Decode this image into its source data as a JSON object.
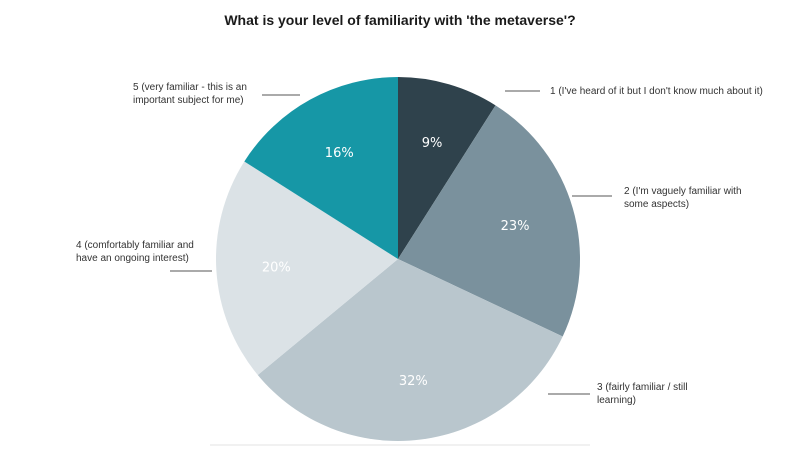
{
  "chart_data": {
    "type": "pie",
    "title": "What is your level of familiarity with 'the metaverse'?",
    "slices": [
      {
        "label": "1 (I've heard of it but I don't know much about it)",
        "value": 9,
        "display": "9%",
        "color": "#2f424c",
        "label_color": "#ffffff"
      },
      {
        "label": "2 (I'm vaguely familiar with some aspects)",
        "value": 23,
        "display": "23%",
        "color": "#7a919d",
        "label_color": "#ffffff"
      },
      {
        "label": "3 (fairly familiar / still learning)",
        "value": 32,
        "display": "32%",
        "color": "#b9c6cd",
        "label_color": "#ffffff"
      },
      {
        "label": "4 (comfortably familiar and have an ongoing interest)",
        "value": 20,
        "display": "20%",
        "color": "#dbe2e6",
        "label_color": "#ffffff"
      },
      {
        "label": "5 (very familiar - this is an important subject for me)",
        "value": 16,
        "display": "16%",
        "color": "#1697a6",
        "label_color": "#ffffff"
      }
    ],
    "start": "12 o'clock",
    "direction": "clockwise",
    "legend": "none"
  }
}
